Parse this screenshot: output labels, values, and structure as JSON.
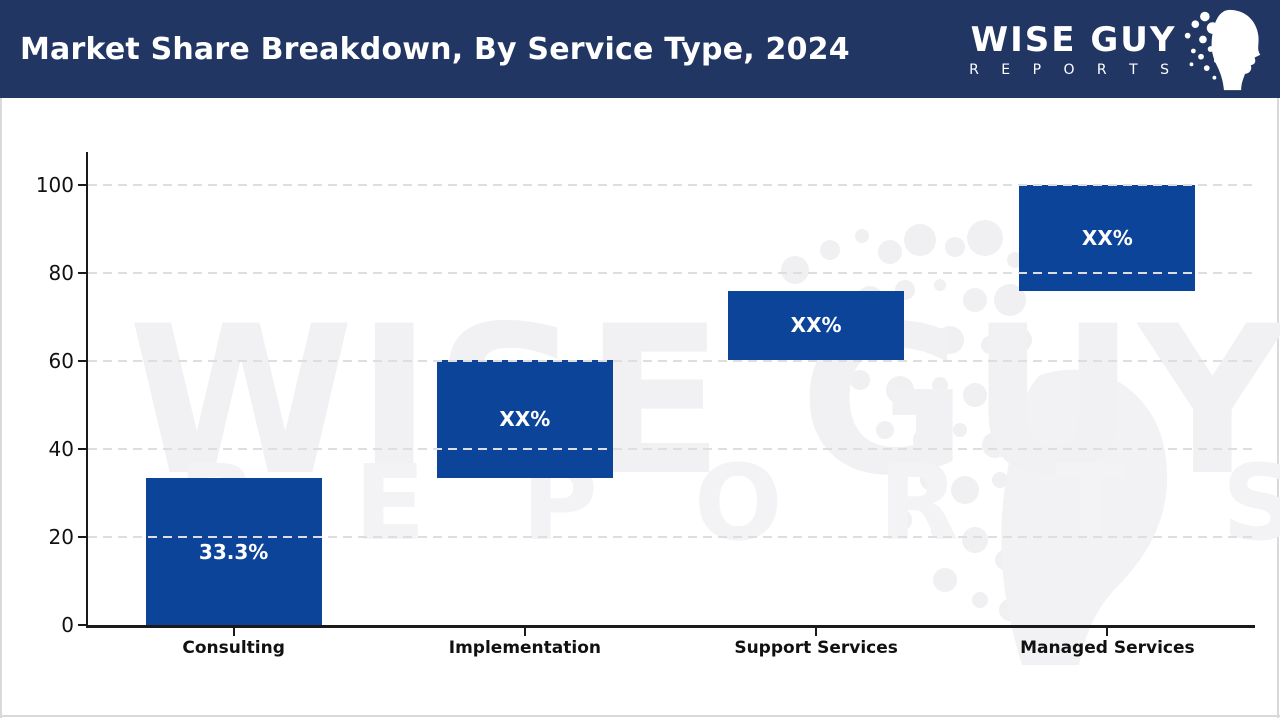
{
  "header": {
    "title": "Market Share Breakdown, By Service Type, 2024",
    "bg_color": "#213663",
    "logo": {
      "line1": "WISE GUY",
      "line2": "R E P O R T S"
    }
  },
  "watermark": {
    "line1": "WISE GUY",
    "line2": "R E P O R T S"
  },
  "chart_data": {
    "type": "bar",
    "subtype": "waterfall-steps",
    "title": "Market Share Breakdown, By Service Type, 2024",
    "categories": [
      "Consulting",
      "Implementation",
      "Support Services",
      "Managed Services"
    ],
    "segments": [
      {
        "category": "Consulting",
        "start": 0,
        "end": 33.3,
        "label": "33.3%"
      },
      {
        "category": "Implementation",
        "start": 33.3,
        "end": 60.3,
        "label": "XX%"
      },
      {
        "category": "Support Services",
        "start": 60.3,
        "end": 75.9,
        "label": "XX%"
      },
      {
        "category": "Managed Services",
        "start": 75.9,
        "end": 100,
        "label": "XX%"
      }
    ],
    "yticks": [
      0,
      20,
      40,
      60,
      80,
      100
    ],
    "ylim": [
      0,
      107
    ],
    "xlabel": "",
    "ylabel": "",
    "grid": "horizontal-dashed-above-bars",
    "legend": "none",
    "bar_color": "#0c4499",
    "bar_label_color": "#ffffff",
    "axis_color": "#1a1a1a",
    "grid_color": "#dedede"
  }
}
